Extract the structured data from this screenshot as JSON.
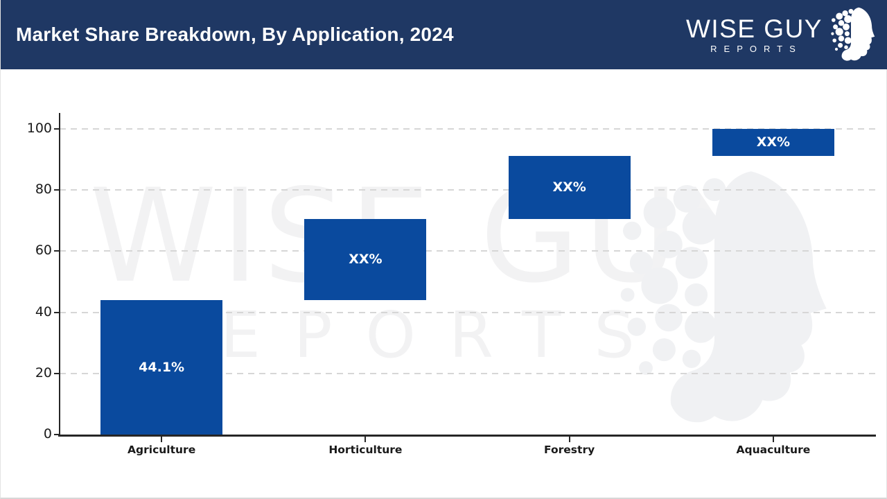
{
  "header": {
    "title": "Market Share Breakdown, By Application, 2024",
    "bg_color": "#1f3864",
    "logo": {
      "line1": "WISE GUY",
      "line2": "REPORTS"
    }
  },
  "watermark": {
    "line1": "WISE GUY",
    "line2": "REPORTS"
  },
  "chart_data": {
    "type": "bar",
    "subtype": "waterfall",
    "title": "Market Share Breakdown, By Application, 2024",
    "categories": [
      "Agriculture",
      "Horticulture",
      "Forestry",
      "Aquaculture"
    ],
    "series": [
      {
        "name": "Market Share %",
        "segments": [
          {
            "category": "Agriculture",
            "start": 0,
            "end": 44.1,
            "label": "44.1%"
          },
          {
            "category": "Horticulture",
            "start": 44.1,
            "end": 70.6,
            "label": "XX%"
          },
          {
            "category": "Forestry",
            "start": 70.6,
            "end": 91.2,
            "label": "XX%"
          },
          {
            "category": "Aquaculture",
            "start": 91.2,
            "end": 100,
            "label": "XX%"
          }
        ]
      }
    ],
    "xlabel": "",
    "ylabel": "",
    "ylim": [
      0,
      100
    ],
    "yticks": [
      0,
      20,
      40,
      60,
      80,
      100
    ],
    "grid": "horizontal-dashed",
    "legend": "none",
    "bar_color": "#0a4a9e",
    "bar_label_color": "#ffffff",
    "axis_color": "#262626",
    "gridline_color": "#d6d6d6"
  }
}
